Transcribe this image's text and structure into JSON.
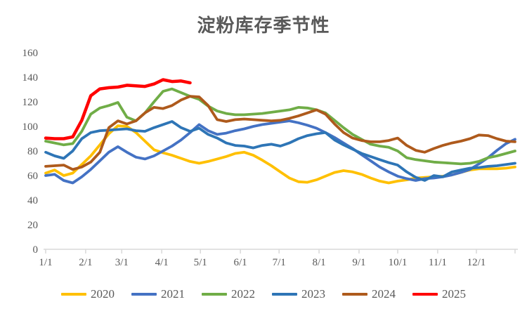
{
  "title": "淀粉库存季节性",
  "colors": {
    "text": "#595959",
    "axis": "#D9D9D9",
    "background": "#FFFFFF"
  },
  "chart_data": {
    "type": "line",
    "title": "淀粉库存季节性",
    "xlabel": "",
    "ylabel": "",
    "ylim": [
      0,
      160
    ],
    "y_ticks": [
      0,
      20,
      40,
      60,
      80,
      100,
      120,
      140,
      160
    ],
    "x_tick_labels": [
      "1/1",
      "2/1",
      "3/1",
      "4/1",
      "5/1",
      "6/1",
      "7/1",
      "8/1",
      "9/1",
      "10/1",
      "11/1",
      "12/1"
    ],
    "x_tick_days": [
      0,
      31,
      59,
      90,
      120,
      151,
      181,
      212,
      243,
      273,
      304,
      334
    ],
    "x_total_days": 364,
    "day_step": 7,
    "grid": false,
    "legend_position": "bottom",
    "series": [
      {
        "name": "2020",
        "color": "#FFC000",
        "values": [
          62,
          64.5,
          60,
          62,
          69,
          76,
          85,
          94,
          100.5,
          100,
          95,
          88,
          81,
          78.5,
          76.5,
          74,
          71.5,
          70,
          71.5,
          73.5,
          75.5,
          78,
          79,
          76.5,
          72.5,
          68,
          63,
          58,
          55,
          54.5,
          56.5,
          59.5,
          62.5,
          64,
          63,
          61,
          58,
          55.5,
          54,
          55.5,
          56.5,
          58,
          58.5,
          59,
          59.5,
          60.5,
          62.5,
          64.5,
          65.5,
          65.5,
          65.5,
          66,
          67
        ]
      },
      {
        "name": "2021",
        "color": "#4472C4",
        "values": [
          60,
          61,
          56,
          54,
          59,
          65,
          72,
          79,
          83.5,
          79,
          75,
          73.5,
          76,
          80,
          84,
          89,
          95,
          101.5,
          96.5,
          93.5,
          94.5,
          96.5,
          98,
          100,
          101.5,
          102.5,
          103.5,
          104.5,
          103,
          101,
          98.5,
          95,
          91,
          86.5,
          82,
          77,
          72,
          67,
          63,
          59.5,
          57.5,
          56,
          57.5,
          58,
          59,
          60.5,
          62.5,
          65,
          69.5,
          74.5,
          80.5,
          86,
          89.5
        ]
      },
      {
        "name": "2022",
        "color": "#70AD47",
        "values": [
          88,
          86.5,
          85,
          86,
          96,
          110,
          115,
          117,
          119.5,
          107.5,
          104.5,
          111,
          120,
          128.5,
          130.5,
          127.5,
          124.5,
          122,
          116.5,
          112.5,
          110.5,
          109.5,
          109.5,
          110,
          110.5,
          111.5,
          112.5,
          113.5,
          115.5,
          115,
          113.5,
          111,
          105,
          99,
          93.5,
          89.5,
          85.5,
          84,
          83,
          80,
          74.5,
          73,
          72,
          71,
          70.5,
          70,
          69.5,
          70,
          71.5,
          74.5,
          76,
          78,
          80
        ]
      },
      {
        "name": "2023",
        "color": "#2E75B6",
        "values": [
          79,
          76,
          74,
          80,
          90,
          95,
          96.5,
          97,
          97.5,
          98,
          96.5,
          96,
          99,
          101.5,
          104,
          99,
          96,
          98.5,
          93.5,
          90.5,
          86.5,
          84.5,
          84,
          82.5,
          84.5,
          85.5,
          84,
          86.5,
          90,
          92.5,
          94,
          95,
          89,
          85,
          81.5,
          78,
          75.5,
          73,
          70.5,
          68.5,
          63,
          58.5,
          56,
          60,
          59,
          63,
          64.5,
          66,
          66.5,
          67.5,
          68,
          69,
          70
        ]
      },
      {
        "name": "2024",
        "color": "#AE5A1C",
        "values": [
          67.5,
          68,
          68.5,
          65,
          67,
          71,
          79,
          99,
          104.5,
          102,
          104.5,
          111,
          115.5,
          114.5,
          117,
          121.5,
          124.5,
          124,
          117,
          105.5,
          104,
          105.5,
          106,
          105.5,
          105,
          104.5,
          105,
          106.5,
          108.5,
          111,
          113.5,
          110,
          102,
          95,
          90.5,
          88.5,
          87.5,
          87.5,
          88.5,
          90.5,
          84.5,
          80.5,
          79,
          82,
          84.5,
          86.5,
          88,
          90,
          93,
          92.5,
          90,
          88,
          87.5
        ]
      },
      {
        "name": "2025",
        "color": "#FF0000",
        "values": [
          90.5,
          90,
          90,
          91.5,
          105,
          125,
          130.5,
          131.5,
          132,
          133.5,
          133,
          132.5,
          134.5,
          138,
          136.5,
          137,
          135.5
        ]
      }
    ]
  }
}
